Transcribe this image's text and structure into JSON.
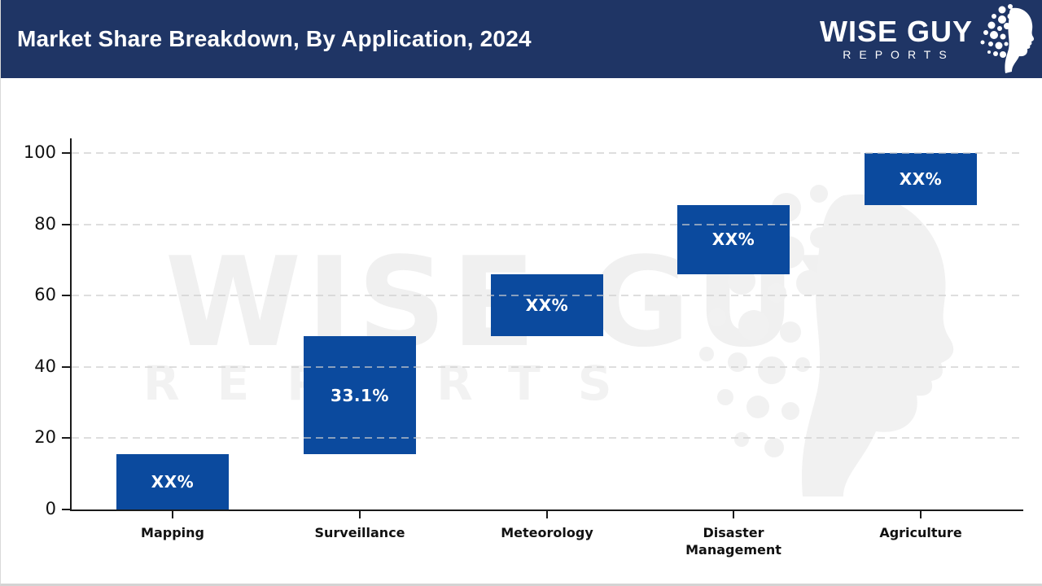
{
  "header": {
    "title": "Market Share Breakdown, By Application, 2024",
    "bg_color": "#1f3565",
    "logo": {
      "line1": "WISE GUY",
      "line2": "REPORTS"
    }
  },
  "watermark": {
    "line1": "WISE GUY",
    "line2": "REPORTS"
  },
  "chart_data": {
    "type": "bar",
    "subtype": "waterfall",
    "title": "Market Share Breakdown, By Application, 2024",
    "xlabel": "",
    "ylabel": "",
    "categories": [
      "Mapping",
      "Surveillance",
      "Meteorology",
      "Disaster Management",
      "Agriculture"
    ],
    "series": [
      {
        "name": "Market Share (%)",
        "segments": [
          {
            "category": "Mapping",
            "start": 0,
            "end": 15.5,
            "value_label": "XX%"
          },
          {
            "category": "Surveillance",
            "start": 15.5,
            "end": 48.6,
            "value_label": "33.1%"
          },
          {
            "category": "Meteorology",
            "start": 48.6,
            "end": 66.0,
            "value_label": "XX%"
          },
          {
            "category": "Disaster Management",
            "start": 66.0,
            "end": 85.5,
            "value_label": "XX%"
          },
          {
            "category": "Agriculture",
            "start": 85.5,
            "end": 100,
            "value_label": "XX%"
          }
        ]
      }
    ],
    "ylim": [
      0,
      100
    ],
    "yticks": [
      0,
      20,
      40,
      60,
      80,
      100
    ],
    "grid": "horizontal-dashed",
    "legend": "none",
    "bar_color": "#0b4a9e",
    "bar_label_color": "#ffffff",
    "axis_color": "#1a1a1a"
  }
}
